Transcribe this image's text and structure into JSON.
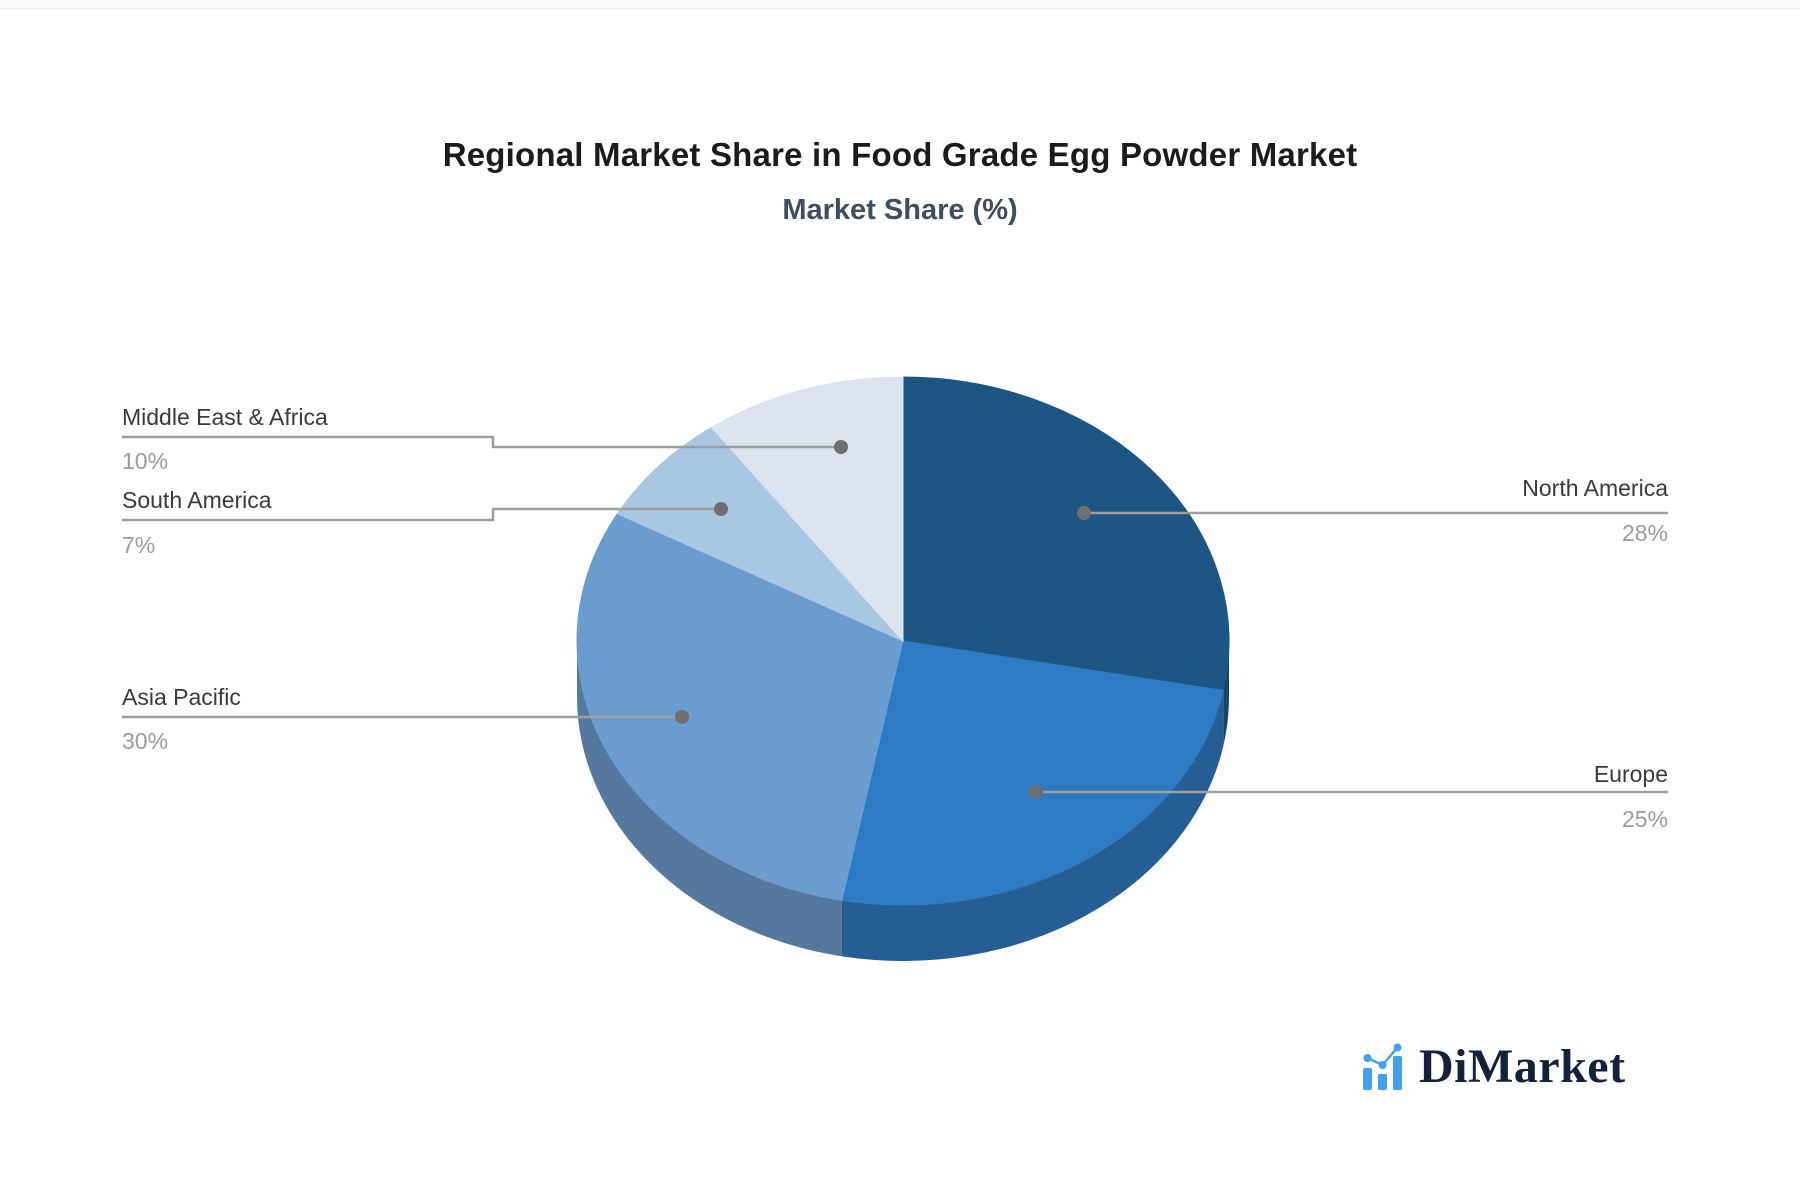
{
  "chart_data": {
    "type": "pie",
    "title": "Regional Market Share in Food Grade Egg Powder Market",
    "subtitle": "Market Share (%)",
    "unit": "%",
    "start_angle_deg": 0,
    "direction": "clockwise",
    "style": "3d-depth",
    "legend_position": "callout-labels",
    "slices": [
      {
        "label": "North America",
        "value": 28,
        "display": "28%",
        "color": "#1d5583",
        "rim_color": "#174569"
      },
      {
        "label": "Europe",
        "value": 25,
        "display": "25%",
        "color": "#2e7bc3",
        "rim_color": "#255e95"
      },
      {
        "label": "Asia Pacific",
        "value": 30,
        "display": "30%",
        "color": "#6b9ccf",
        "rim_color": "#55789f"
      },
      {
        "label": "South America",
        "value": 7,
        "display": "7%",
        "color": "#a9c6e3",
        "rim_color": "#8ba4be"
      },
      {
        "label": "Middle East & Africa",
        "value": 10,
        "display": "10%",
        "color": "#dbe3ee",
        "rim_color": "#b3bcca"
      }
    ]
  },
  "callout_colors": {
    "label": "#3a3a3a",
    "value": "#9b9b9b",
    "line": "#9e9e9e",
    "dot": "#6f6f6f"
  },
  "brand": {
    "name": "DiMarket",
    "accent": "#42a0f0",
    "text_color": "#15213a"
  }
}
